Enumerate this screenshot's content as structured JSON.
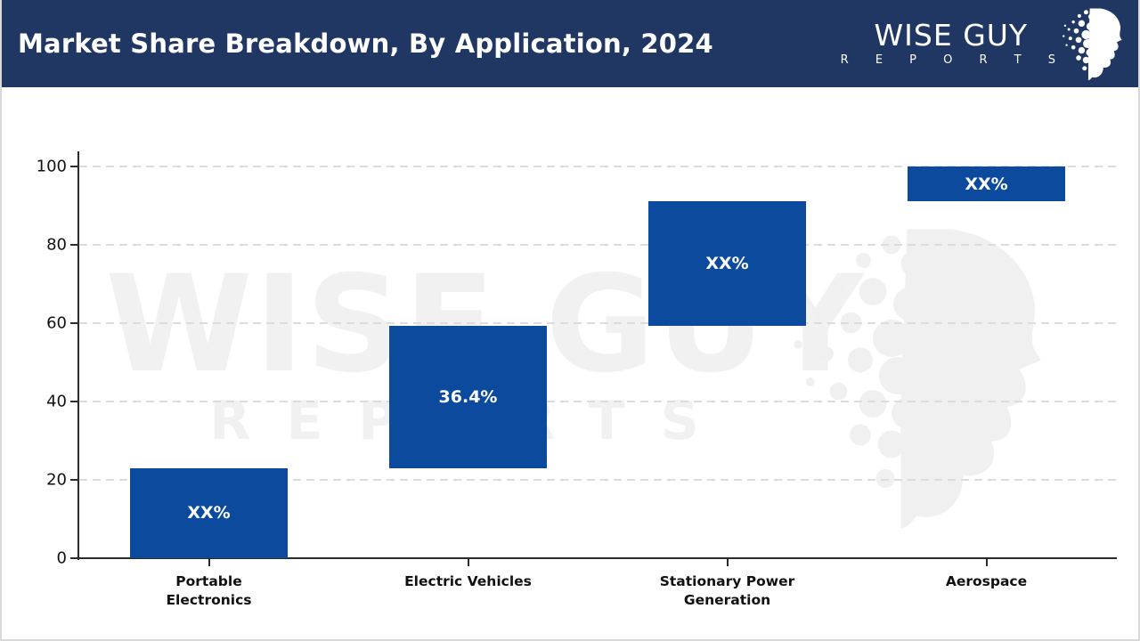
{
  "header": {
    "title": "Market Share Breakdown, By Application, 2024",
    "logo": {
      "wordmark": "WISE GUY",
      "subtext": "R E P O R T S"
    }
  },
  "watermark": {
    "wordmark": "WISE GUY",
    "subtext": "REPORTS"
  },
  "colors": {
    "header_bg": "#203764",
    "bar": "#0c4a9e",
    "bar_label": "#ffffff",
    "axis": "#2b2b2b",
    "gridline": "#dcdcdc",
    "watermark": "#f1f1f1"
  },
  "chart_data": {
    "type": "bar",
    "variant": "waterfall-floating-bars",
    "title": "Market Share Breakdown, By Application, 2024",
    "categories": [
      "Portable\nElectronics",
      "Electric Vehicles",
      "Stationary Power\nGeneration",
      "Aerospace"
    ],
    "segments": [
      {
        "category": "Portable Electronics",
        "start": 0,
        "end": 23,
        "value": 23.0,
        "label": "XX%"
      },
      {
        "category": "Electric Vehicles",
        "start": 23,
        "end": 59.4,
        "value": 36.4,
        "label": "36.4%"
      },
      {
        "category": "Stationary Power Generation",
        "start": 59.4,
        "end": 91.1,
        "value": 31.7,
        "label": "XX%"
      },
      {
        "category": "Aerospace",
        "start": 91.1,
        "end": 100,
        "value": 8.9,
        "label": "XX%"
      }
    ],
    "xlabel": "",
    "ylabel": "",
    "ylim": [
      0,
      100
    ],
    "yticks": [
      0,
      20,
      40,
      60,
      80,
      100
    ],
    "grid": "horizontal-dashed",
    "legend": "none"
  }
}
